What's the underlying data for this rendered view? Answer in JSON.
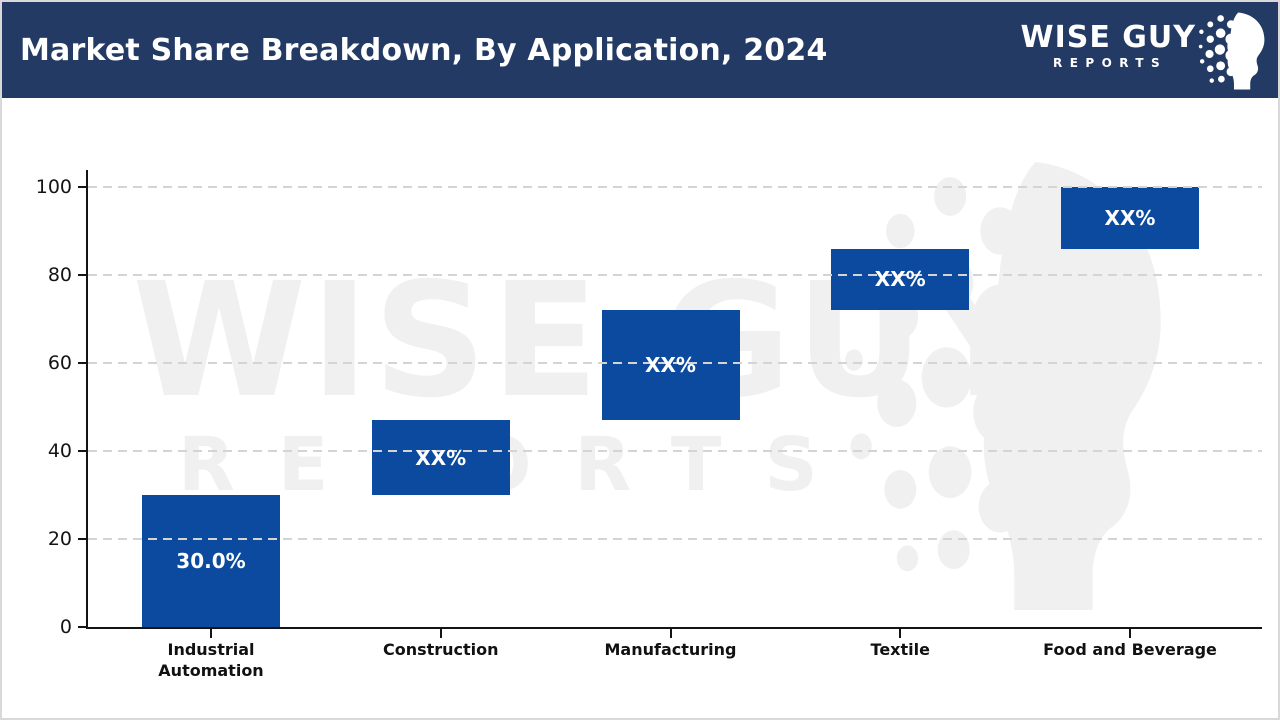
{
  "header": {
    "title": "Market Share Breakdown, By Application, 2024",
    "logo": {
      "line1": "WISE GUY",
      "line2": "REPORTS"
    }
  },
  "watermark": {
    "line1": "WISE GUY",
    "line2": "REPORTS"
  },
  "chart_data": {
    "type": "bar",
    "subtype": "waterfall",
    "title": "Market Share Breakdown, By Application, 2024",
    "categories": [
      "Industrial Automation",
      "Construction",
      "Manufacturing",
      "Textile",
      "Food and Beverage"
    ],
    "tick_labels": [
      "Industrial\nAutomation",
      "Construction",
      "Manufacturing",
      "Textile",
      "Food and Beverage"
    ],
    "segments": [
      {
        "category": "Industrial Automation",
        "start": 0,
        "end": 30,
        "label": "30.0%"
      },
      {
        "category": "Construction",
        "start": 30,
        "end": 47,
        "label": "XX%"
      },
      {
        "category": "Manufacturing",
        "start": 47,
        "end": 72,
        "label": "XX%"
      },
      {
        "category": "Textile",
        "start": 72,
        "end": 86,
        "label": "XX%"
      },
      {
        "category": "Food and Beverage",
        "start": 86,
        "end": 100,
        "label": "XX%"
      }
    ],
    "ylim": [
      0,
      100
    ],
    "yticks": [
      0,
      20,
      40,
      60,
      80,
      100
    ],
    "grid": "horizontal-dashed",
    "legend": "none",
    "colors": {
      "bar": "#0b4a9e",
      "bar_label": "#ffffff",
      "grid": "#d4d4d4",
      "axis": "#141414",
      "header_bg": "#223a64",
      "watermark": "#f0f0f0"
    }
  }
}
